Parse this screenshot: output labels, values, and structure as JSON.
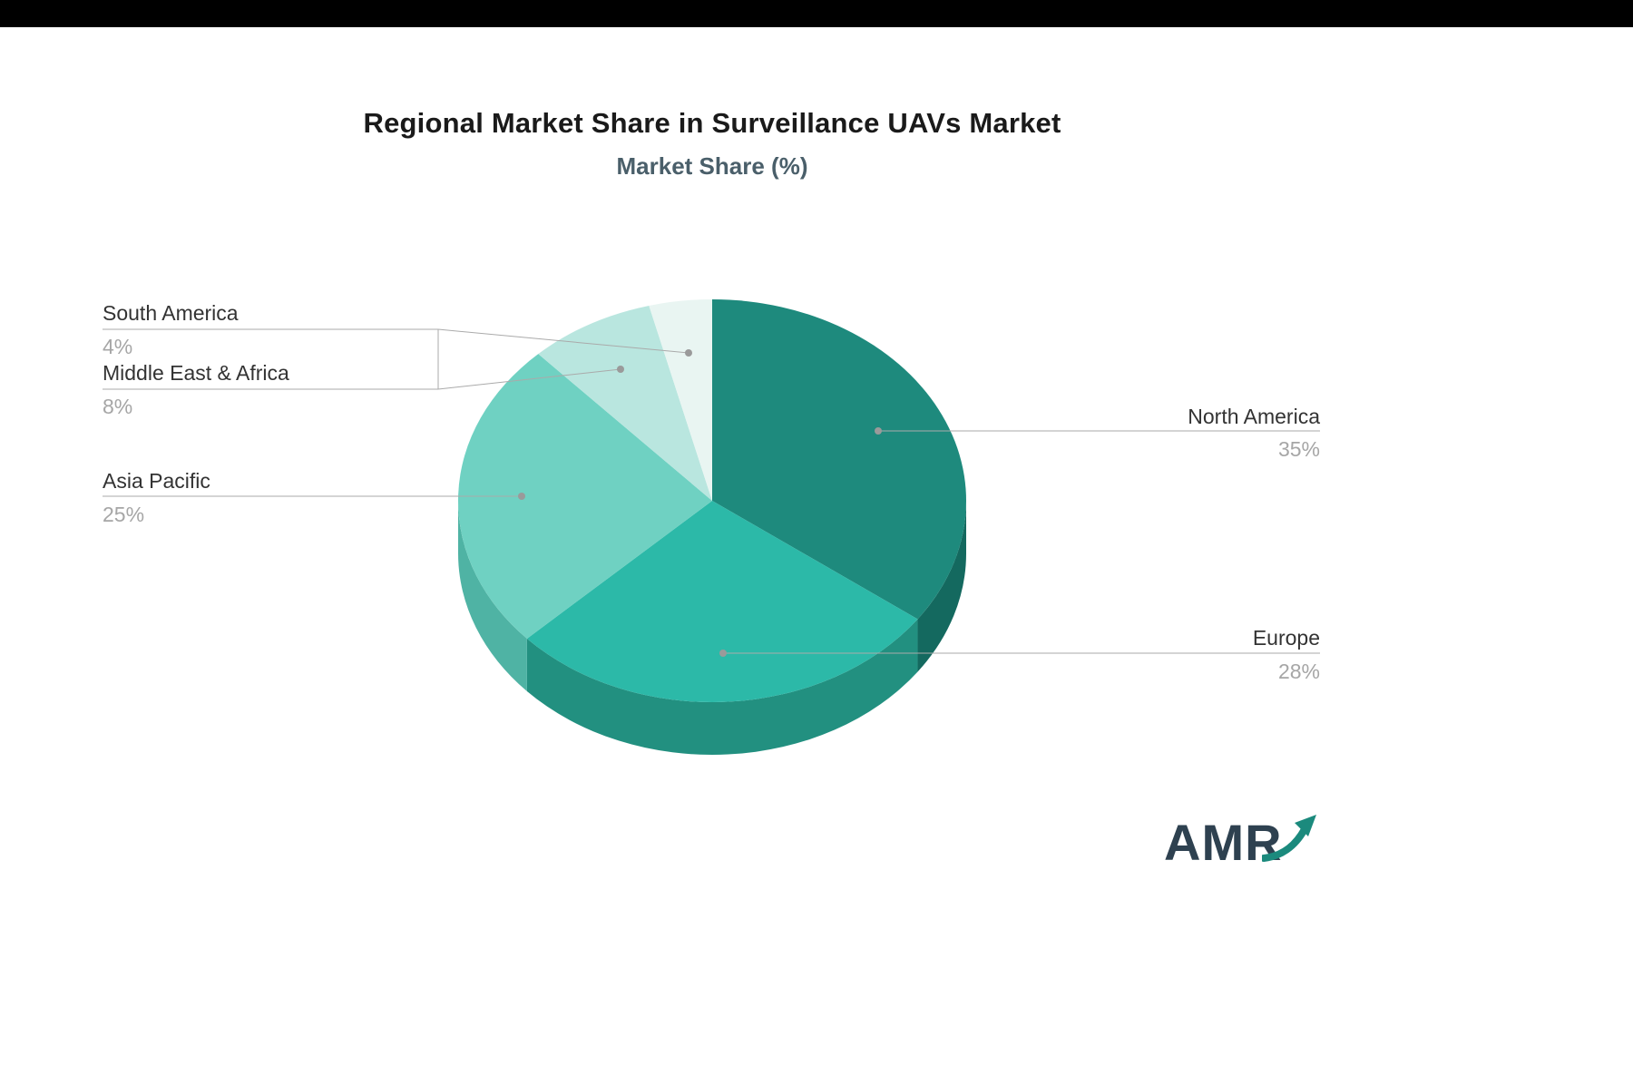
{
  "chart_data": {
    "type": "pie",
    "title": "Regional Market Share in Surveillance UAVs Market",
    "subtitle": "Market Share (%)",
    "unit": "%",
    "start_angle_deg": -90,
    "direction": "clockwise",
    "effect": "3d",
    "legend_position": "none",
    "slices": [
      {
        "label": "North America",
        "value": 35,
        "display_value": "35%",
        "color": "#1e8a7d",
        "side_color": "#14695f"
      },
      {
        "label": "Europe",
        "value": 28,
        "display_value": "28%",
        "color": "#2cb9a8",
        "side_color": "#229080"
      },
      {
        "label": "Asia Pacific",
        "value": 25,
        "display_value": "25%",
        "color": "#6fd1c2",
        "side_color": "#4fb3a4"
      },
      {
        "label": "Middle East & Africa",
        "value": 8,
        "display_value": "8%",
        "color": "#b9e6df",
        "side_color": "#93cfc6"
      },
      {
        "label": "South America",
        "value": 4,
        "display_value": "4%",
        "color": "#e9f5f2",
        "side_color": "#c4e2dd"
      }
    ],
    "label_color": "#333333",
    "value_color": "#a6a6a6",
    "leader_color": "#aaaaaa",
    "dot_color": "#9a9a9a"
  },
  "branding": {
    "logo_text": "AMR",
    "logo_color": "#2e4150",
    "arrow_color": "#1b8a7d"
  }
}
